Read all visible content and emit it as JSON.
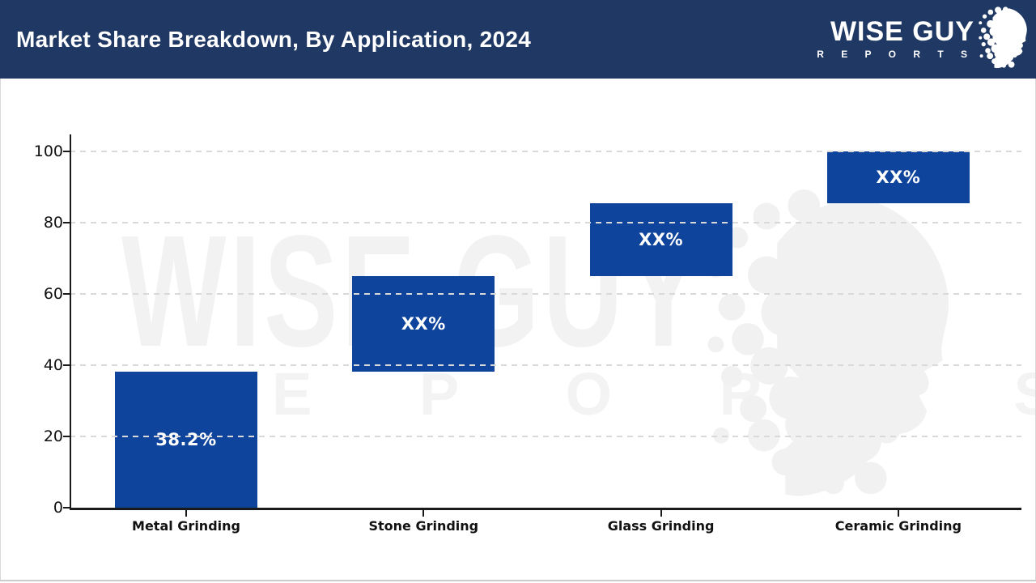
{
  "header": {
    "title": "Market Share Breakdown, By Application, 2024",
    "bg_color": "#203864",
    "logo": {
      "line1": "WISE GUY",
      "line2": "R E P O R T S"
    }
  },
  "watermark": {
    "line1": "WISE GUY",
    "line2": "R E P O R T S"
  },
  "chart_data": {
    "type": "bar",
    "subtype": "waterfall",
    "title": "Market Share Breakdown, By Application, 2024",
    "categories": [
      "Metal Grinding",
      "Stone Grinding",
      "Glass Grinding",
      "Ceramic Grinding"
    ],
    "segments": [
      {
        "category": "Metal Grinding",
        "start": 0,
        "end": 38.2,
        "label": "38.2%"
      },
      {
        "category": "Stone Grinding",
        "start": 38.2,
        "end": 65.0,
        "label": "XX%"
      },
      {
        "category": "Glass Grinding",
        "start": 65.0,
        "end": 85.5,
        "label": "XX%"
      },
      {
        "category": "Ceramic Grinding",
        "start": 85.5,
        "end": 100,
        "label": "XX%"
      }
    ],
    "yticks": [
      0,
      20,
      40,
      60,
      80,
      100
    ],
    "ylim": [
      0,
      105
    ],
    "xlabel": "",
    "ylabel": "",
    "bar_color": "#0e449c",
    "grid": "horizontal-dashed",
    "legend": "none"
  }
}
